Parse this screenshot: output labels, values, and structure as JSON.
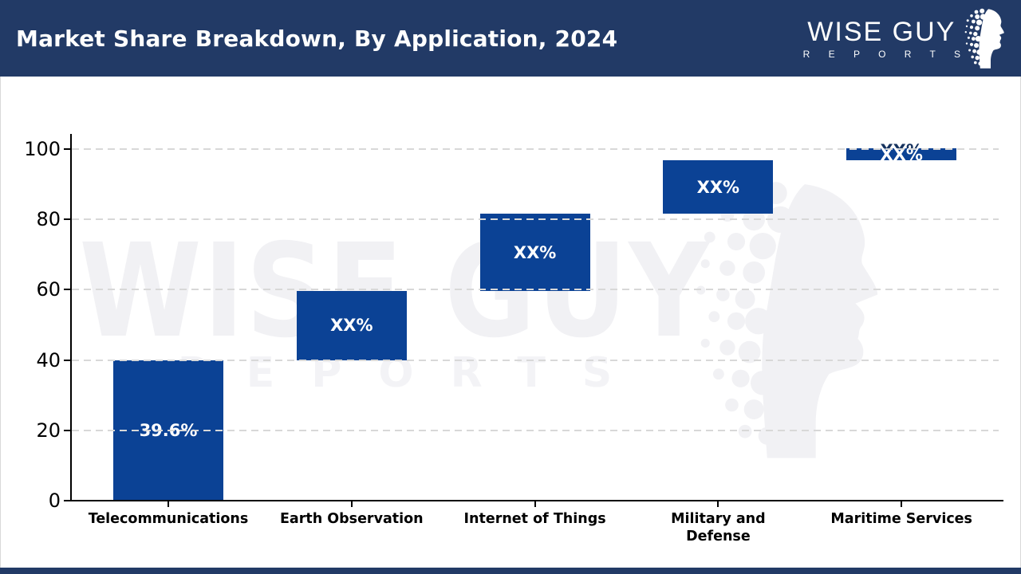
{
  "header": {
    "title": "Market Share Breakdown, By Application, 2024",
    "logo_line1": "WISE GUY",
    "logo_line2": "R E P O R T S"
  },
  "watermark": {
    "line1": "WISE GUY",
    "line2": "REPORTS"
  },
  "colors": {
    "header_navy": "#223a66",
    "bar_blue": "#0b4295",
    "gridline_gray": "#d8d8d8",
    "axis_black": "#000000",
    "bar_label_white": "#ffffff",
    "hidden_label_dark": "#15325e",
    "watermark_gray": "#f1f1f4"
  },
  "chart_data": {
    "type": "bar",
    "subtype": "waterfall",
    "title": "Market Share Breakdown, By Application, 2024",
    "categories": [
      "Telecommunications",
      "Earth Observation",
      "Internet of Things",
      "Military and Defense",
      "Maritime Services"
    ],
    "categories_display": [
      "Telecommunications",
      "Earth Observation",
      "Internet of Things",
      "Military and\nDefense",
      "Maritime Services"
    ],
    "segments": [
      {
        "category": "Telecommunications",
        "start": 0,
        "end": 39.6,
        "label": "39.6%"
      },
      {
        "category": "Earth Observation",
        "start": 39.6,
        "end": 59.5,
        "label": "XX%"
      },
      {
        "category": "Internet of Things",
        "start": 59.5,
        "end": 81.3,
        "label": "XX%"
      },
      {
        "category": "Military and Defense",
        "start": 81.3,
        "end": 96.6,
        "label": "XX%"
      },
      {
        "category": "Maritime Services",
        "start": 96.6,
        "end": 100,
        "label": "XX%"
      }
    ],
    "bar_labels": [
      "39.6%",
      "XX%",
      "XX%",
      "XX%",
      "XX%"
    ],
    "ylabel": "",
    "xlabel": "",
    "yticks": [
      0,
      20,
      40,
      60,
      80,
      100
    ],
    "ylim": [
      0,
      105
    ],
    "grid": "horizontal-dashed",
    "grid_above_bars": true,
    "legend": "none"
  }
}
